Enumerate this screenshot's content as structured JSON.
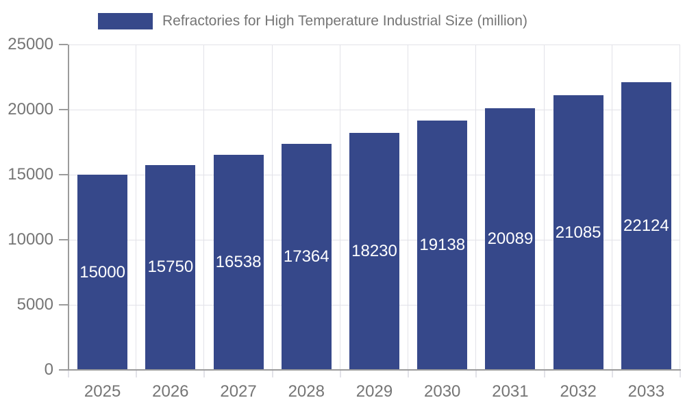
{
  "chart_data": {
    "type": "bar",
    "title": "Refractories for High Temperature Industrial Size (million)",
    "categories": [
      "2025",
      "2026",
      "2027",
      "2028",
      "2029",
      "2030",
      "2031",
      "2032",
      "2033"
    ],
    "values": [
      15000,
      15750,
      16538,
      17364,
      18230,
      19138,
      20089,
      21085,
      22124
    ],
    "xlabel": "",
    "ylabel": "",
    "ylim": [
      0,
      25000
    ],
    "yticks": [
      0,
      5000,
      10000,
      15000,
      20000,
      25000
    ],
    "grid": true,
    "legend_position": "top-left",
    "value_label_position": "inside-center",
    "colors": {
      "bar": "#36488A",
      "value_label": "#FFFFFF",
      "axis_text": "#757575",
      "grid_line": "#E2E2E8",
      "axis_line": "#9B9B9B",
      "background": "#FFFFFF"
    }
  }
}
